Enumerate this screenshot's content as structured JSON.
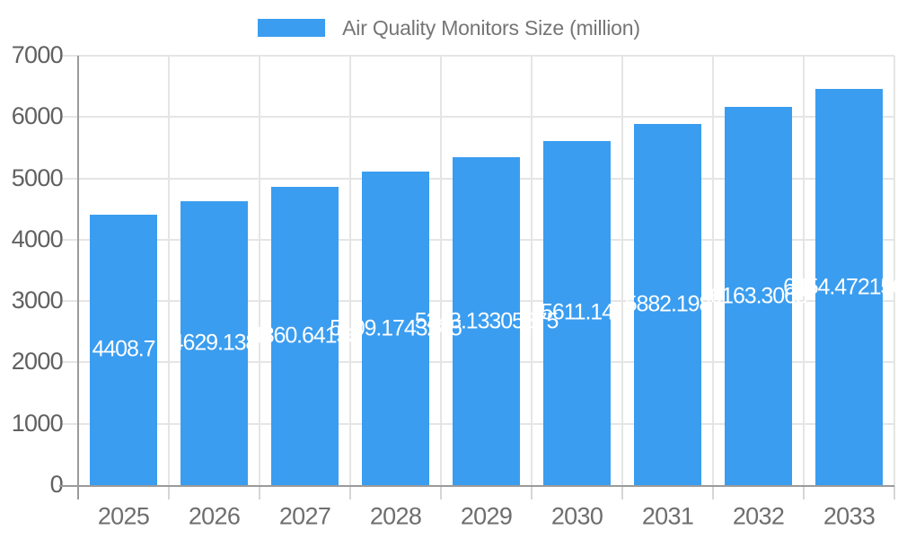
{
  "chart_data": {
    "type": "bar",
    "title": "Air Quality Monitors Size (million)",
    "legend": "Air Quality Monitors Size (million)",
    "legend_position": "top",
    "categories": [
      "2025",
      "2026",
      "2027",
      "2028",
      "2029",
      "2030",
      "2031",
      "2032",
      "2033"
    ],
    "values": [
      4408.7,
      4629.138,
      4860.64153,
      5109.1743245,
      5343.13305875,
      5611.14,
      5882.198,
      6163.3068,
      6454.4721564
    ],
    "value_labels": [
      "4408.7",
      "4629.138",
      "4860.64153",
      "5109.1743245",
      "5343.13305875",
      "5611.14",
      "5882.198",
      "6163.3068",
      "6454.4721564"
    ],
    "xlabel": "",
    "ylabel": "",
    "ylim": [
      0,
      7000
    ],
    "ytick_step": 1000,
    "yticks": [
      0,
      1000,
      2000,
      3000,
      4000,
      5000,
      6000,
      7000
    ],
    "grid": true,
    "bar_color": "#3A9DF0",
    "bar_label_color": "#ffffff",
    "gridline_color": "#e5e5e5",
    "axis_line_color": "#9b9b9b",
    "ytick_label_color": "#616161",
    "xtick_label_color": "#6e6e6e",
    "legend_text_color": "#757575"
  }
}
